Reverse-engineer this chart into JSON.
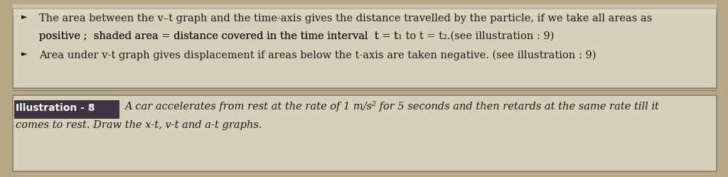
{
  "bg_color": "#b8a888",
  "box1_bg": "#d8cfba",
  "box1_edge": "#808070",
  "box2_bg": "#d8cfba",
  "box2_edge": "#808070",
  "label_bg": "#3a3540",
  "label_text": "Illustration - 8",
  "label_text_color": "#ffffff",
  "text_color": "#1c1c1c",
  "bullet": "►",
  "b1l1": "The area between the v–t graph and the time-axis gives the distance travelled by the particle, if we take all areas as",
  "b1l2": "positive ;  shaded area = distance covered in the time interval  t = t",
  "b1l2b": " to t = t",
  "b1l2c": ".(see illustration : 9)",
  "b2l1": "Area under v-t graph gives displacement if areas below the t-axis are taken negative. (see illustration : 9)",
  "il1": "A car accelerates from rest at the rate of 1 m/s",
  "il1b": " for 5 seconds and then retards at the same rate till it",
  "il2": "comes to rest. Draw the x-t, v-t and a-t graphs.",
  "fs": 10.5,
  "fs_label": 10.0
}
